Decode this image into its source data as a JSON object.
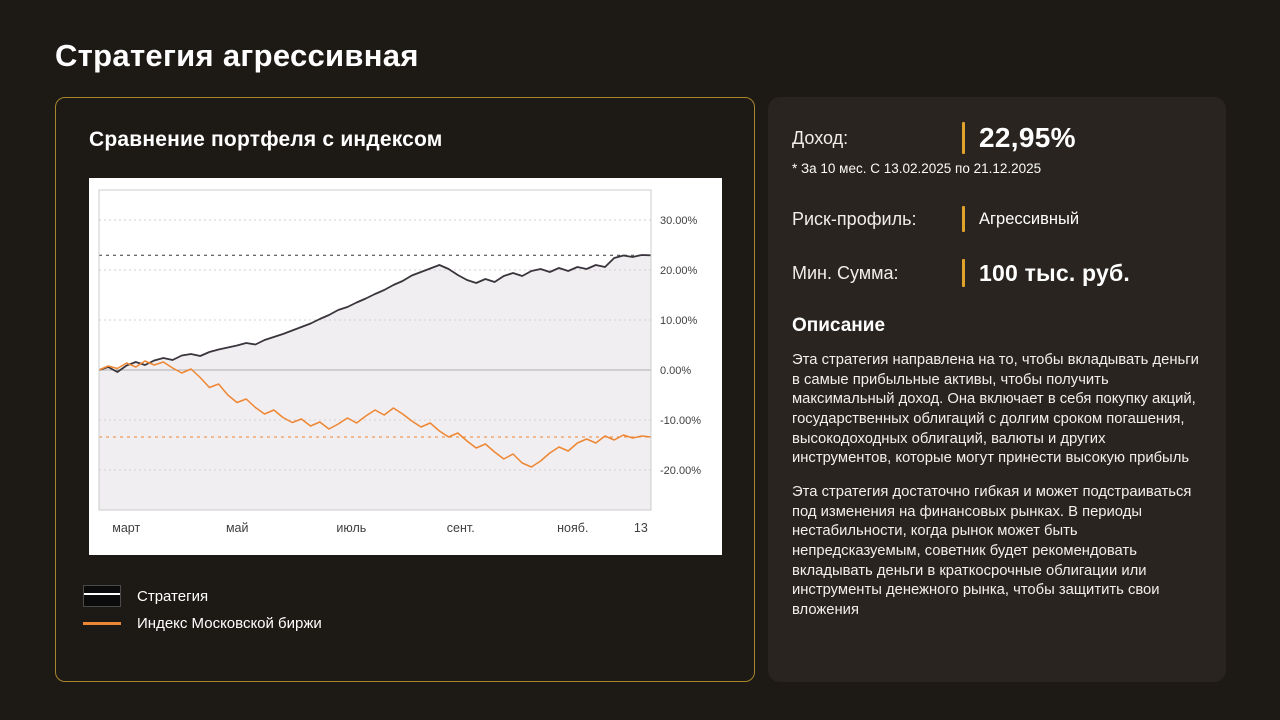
{
  "page": {
    "title": "Стратегия агрессивная"
  },
  "colors": {
    "background": "#1D1915",
    "card_background": "#29241F",
    "accent_gold": "#DFA32B",
    "card_border_gold": "#A5862C",
    "strategy_line": "#3A343C",
    "index_line": "#ED8733"
  },
  "chart_card": {
    "heading": "Сравнение портфеля с индексом",
    "legend": [
      {
        "label": "Стратегия",
        "icon": "black-area-swatch",
        "color": "#3A343C"
      },
      {
        "label": "Индекс Московской биржи",
        "icon": "orange-line-swatch",
        "color": "#ED8733"
      }
    ]
  },
  "info_card": {
    "income_label": "Доход:",
    "income_value": "22,95%",
    "income_note": "* За 10 мес. С 13.02.2025 по 21.12.2025",
    "risk_label": "Риск-профиль:",
    "risk_value": "Агрессивный",
    "min_label": "Мин. Сумма:",
    "min_value": "100 тыс. руб.",
    "description_title": "Описание",
    "description_p1": "Эта стратегия направлена на то, чтобы вкладывать деньги в самые прибыльные активы, чтобы получить максимальный доход. Она включает в себя покупку акций, государственных облигаций с долгим сроком погашения, высокодоходных облигаций, валюты и других инструментов, которые могут принести высокую прибыль",
    "description_p2": "Эта стратегия достаточно гибкая и может подстраиваться под изменения на финансовых рынках. В периоды нестабильности, когда рынок может быть непредсказуемым, советник будет рекомендовать вкладывать деньги в краткосрочные облигации или инструменты денежного рынка, чтобы защитить свои вложения"
  },
  "chart_data": {
    "type": "line",
    "title": "Сравнение портфеля с индексом",
    "grid": true,
    "legend_position": "bottom-left",
    "ylim": [
      -28,
      36
    ],
    "y_ticks": [
      {
        "label": "30.00%",
        "value": 30
      },
      {
        "label": "20.00%",
        "value": 20
      },
      {
        "label": "10.00%",
        "value": 10
      },
      {
        "label": "0.00%",
        "value": 0
      },
      {
        "label": "-10.00%",
        "value": -10
      },
      {
        "label": "-20.00%",
        "value": -20
      }
    ],
    "x_ticks": [
      {
        "label": "март",
        "pos": 0.024
      },
      {
        "label": "май",
        "pos": 0.23
      },
      {
        "label": "июль",
        "pos": 0.43
      },
      {
        "label": "сент.",
        "pos": 0.63
      },
      {
        "label": "нояб.",
        "pos": 0.83
      },
      {
        "label": "13",
        "pos": 0.969
      }
    ],
    "series": [
      {
        "name": "Стратегия",
        "color": "#3A343C",
        "fill": "rgba(216,206,214,0.35)",
        "dotted_final_level": true,
        "values": [
          0,
          0.6,
          -0.4,
          0.9,
          1.6,
          1.0,
          1.9,
          2.4,
          2.0,
          2.9,
          3.2,
          2.8,
          3.6,
          4.1,
          4.5,
          4.9,
          5.4,
          5.1,
          6.0,
          6.6,
          7.2,
          7.9,
          8.6,
          9.3,
          10.2,
          11.0,
          12.0,
          12.6,
          13.5,
          14.3,
          15.2,
          16.0,
          17.0,
          17.8,
          18.9,
          19.6,
          20.3,
          21.0,
          20.2,
          19.0,
          18.0,
          17.4,
          18.2,
          17.6,
          18.8,
          19.4,
          18.8,
          19.8,
          20.2,
          19.6,
          20.4,
          19.8,
          20.6,
          20.2,
          21.0,
          20.6,
          22.4,
          22.9,
          22.6,
          23.0,
          22.95
        ]
      },
      {
        "name": "Индекс Московской биржи",
        "color": "#ED8733",
        "fill": null,
        "dotted_final_level": true,
        "values": [
          0,
          0.8,
          0.3,
          1.4,
          0.6,
          1.8,
          1.0,
          1.6,
          0.4,
          -0.6,
          0.2,
          -1.5,
          -3.5,
          -2.8,
          -5.0,
          -6.5,
          -5.8,
          -7.5,
          -8.8,
          -8.0,
          -9.5,
          -10.5,
          -9.8,
          -11.2,
          -10.4,
          -11.8,
          -10.8,
          -9.6,
          -10.6,
          -9.2,
          -8.0,
          -9.0,
          -7.6,
          -8.8,
          -10.2,
          -11.4,
          -10.6,
          -12.2,
          -13.4,
          -12.6,
          -14.2,
          -15.6,
          -14.8,
          -16.4,
          -17.8,
          -16.8,
          -18.6,
          -19.4,
          -18.2,
          -16.6,
          -15.4,
          -16.2,
          -14.6,
          -13.8,
          -14.6,
          -13.2,
          -14.0,
          -13.0,
          -13.6,
          -13.2,
          -13.4
        ]
      }
    ]
  }
}
